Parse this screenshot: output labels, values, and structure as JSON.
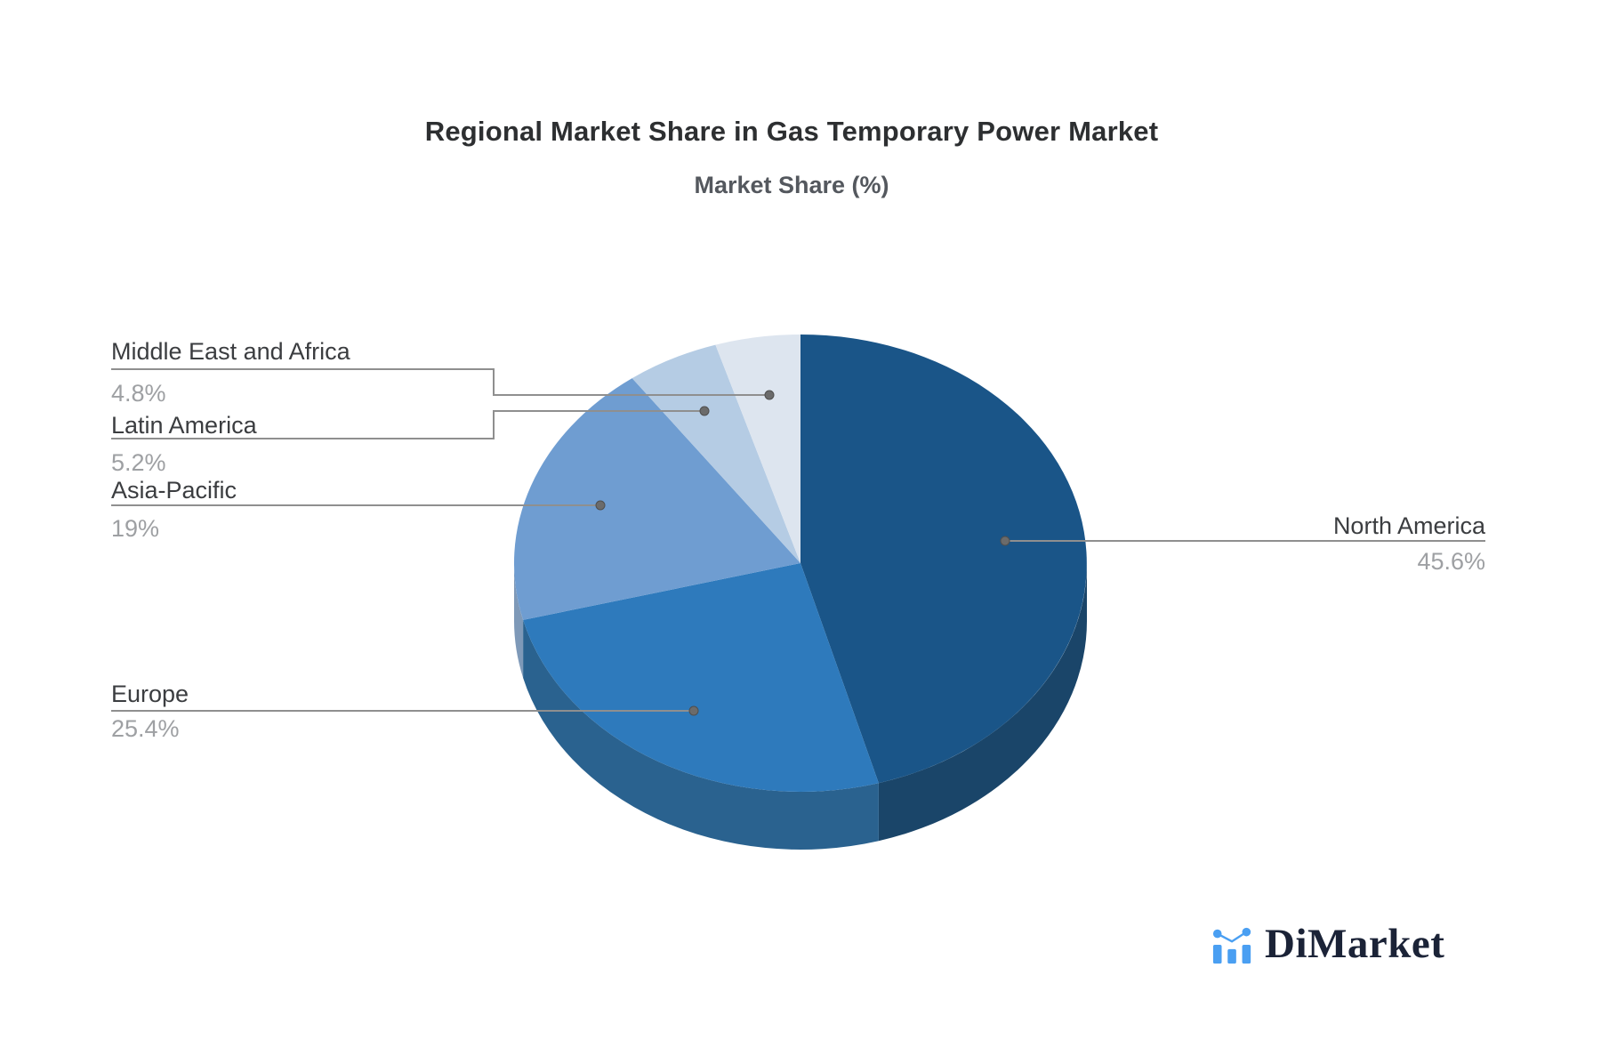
{
  "header": {
    "title": "Regional Market Share in Gas Temporary Power Market",
    "subtitle": "Market Share (%)"
  },
  "chart_data": {
    "type": "pie",
    "title": "Regional Market Share in Gas Temporary Power Market",
    "subtitle": "Market Share (%)",
    "unit": "%",
    "style": "3d",
    "start_angle_deg": 0,
    "direction": "clockwise",
    "legend_position": "leader-labels",
    "slices": [
      {
        "label": "North America",
        "value": 45.6,
        "value_label": "45.6%",
        "color": "#1a5588",
        "side_color": "#1a4569"
      },
      {
        "label": "Europe",
        "value": 25.4,
        "value_label": "25.4%",
        "color": "#2e7abc",
        "side_color": "#2a628f"
      },
      {
        "label": "Asia-Pacific",
        "value": 19,
        "value_label": "19%",
        "color": "#6f9dd1",
        "side_color": "#7e99b8"
      },
      {
        "label": "Latin America",
        "value": 5.2,
        "value_label": "5.2%",
        "color": "#b5cce4",
        "side_color": "#b5cce4"
      },
      {
        "label": "Middle East and Africa",
        "value": 4.8,
        "value_label": "4.8%",
        "color": "#dde5ef",
        "side_color": "#dde5ef"
      }
    ],
    "colors": {
      "leader_line": "#8f8f8f",
      "leader_dot": "#6b6b6b",
      "label_text": "#3b3d40",
      "value_text": "#9ea0a3"
    }
  },
  "branding": {
    "logo_text": "DiMarket",
    "logo_icon": "bar-and-line-chart-icon",
    "logo_accent": "#4a9ff2"
  }
}
